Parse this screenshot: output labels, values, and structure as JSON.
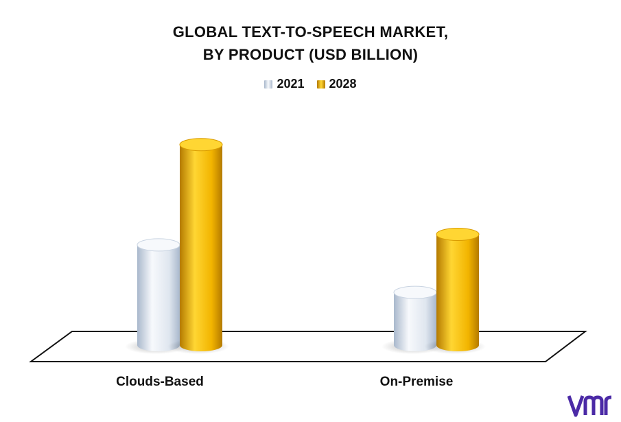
{
  "chart_data": {
    "type": "bar",
    "title_lines": [
      "GLOBAL TEXT-TO-SPEECH MARKET,",
      "BY PRODUCT (USD BILLION)"
    ],
    "categories": [
      "Clouds-Based",
      "On-Premise"
    ],
    "series": [
      {
        "name": "2021",
        "values": [
          1.9,
          1.0
        ],
        "color": "#e9eef5"
      },
      {
        "name": "2028",
        "values": [
          3.8,
          2.1
        ],
        "color": "#f5b800"
      }
    ],
    "ylim": [
      0,
      4.2
    ],
    "grid": false,
    "legend_position": "top-center",
    "three_d": true
  },
  "colors": {
    "series_2021_light": "#f7f9fc",
    "series_2021_dark": "#a9b8cc",
    "series_2028_light": "#ffd633",
    "series_2028_dark": "#b47a00",
    "logo": "#4b2aa6"
  },
  "logo_icon": "vmr-logo"
}
